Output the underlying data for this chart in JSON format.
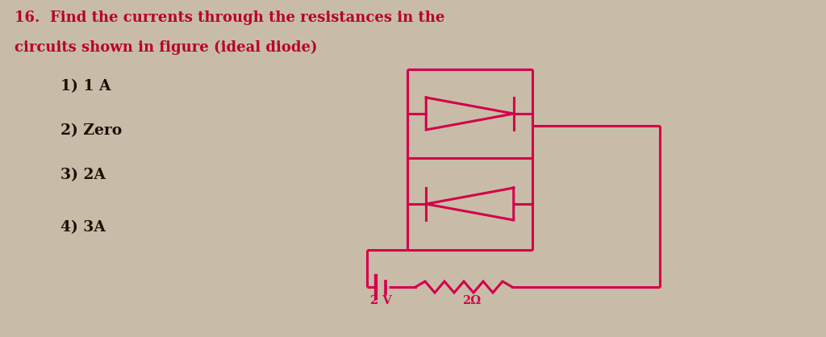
{
  "bg_color": "#c8bca8",
  "title_line1": "16.  Find the currents through the resistances in the",
  "title_line2": "circuits shown in figure (ideal diode)",
  "title_color": "#b8002a",
  "options": [
    "1) 1 A",
    "2) Zero",
    "3) 2A",
    "4) 3A"
  ],
  "options_color": "#1a1005",
  "circuit_color": "#d4004a",
  "label_2v": "2 V",
  "label_2ohm": "2Ω",
  "fig_width": 10.24,
  "fig_height": 4.18
}
